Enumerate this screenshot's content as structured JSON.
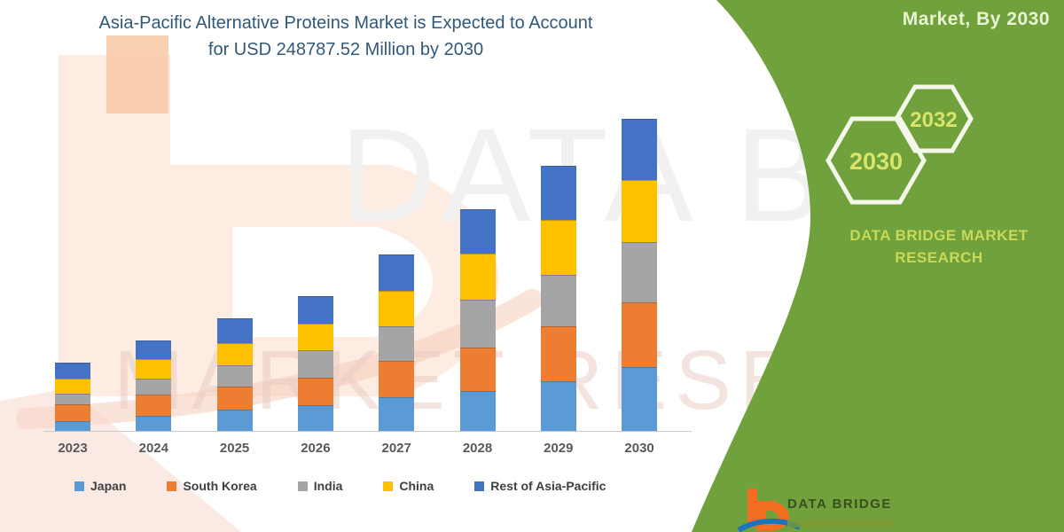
{
  "title": {
    "line1": "Asia-Pacific Alternative Proteins Market is Expected to Account",
    "line2": "for USD 248787.52 Million by 2030"
  },
  "watermark": {
    "line1": "DATA BRIDGE",
    "line2": "MARKET RESEARCH"
  },
  "sidebar": {
    "top_caption": "Market, By 2030",
    "hexagons": [
      {
        "label": "2030"
      },
      {
        "label": "2032"
      }
    ],
    "brand_line1": "DATA BRIDGE MARKET",
    "brand_line2": "RESEARCH",
    "accent_green": "#71a13c",
    "hexagon_text_color": "#d9e46a"
  },
  "footer_logo": {
    "text": "DATA BRIDGE",
    "mark_color": "#f26f21"
  },
  "chart_data": {
    "type": "bar",
    "stacked": true,
    "title": "Asia-Pacific Alternative Proteins Market is Expected to Account for USD 248787.52 Million by 2030",
    "unit": "USD Million",
    "categories": [
      "2023",
      "2024",
      "2025",
      "2026",
      "2027",
      "2028",
      "2029",
      "2030"
    ],
    "series": [
      {
        "name": "Japan",
        "color": "#5B9BD5",
        "values": [
          7800,
          12000,
          17000,
          20500,
          26900,
          31800,
          39600,
          50900
        ]
      },
      {
        "name": "South Korea",
        "color": "#ED7D31",
        "values": [
          13400,
          17000,
          18400,
          21900,
          29000,
          34600,
          43800,
          51600
        ]
      },
      {
        "name": "India",
        "color": "#A5A5A5",
        "values": [
          8500,
          12700,
          17000,
          21900,
          27600,
          38200,
          41000,
          48100
        ]
      },
      {
        "name": "China",
        "color": "#FFC000",
        "values": [
          12000,
          15500,
          17700,
          21200,
          28300,
          36800,
          43800,
          49500
        ]
      },
      {
        "name": "Rest of Asia-Pacific",
        "color": "#4472C4",
        "values": [
          12700,
          14800,
          19800,
          21900,
          29000,
          35300,
          43100,
          48687.52
        ]
      }
    ],
    "totals_by_year": [
      54400,
      72000,
      89900,
      107400,
      140800,
      176700,
      211300,
      248787.52
    ],
    "highlight_total_2030": 248787.52,
    "legend_position": "bottom",
    "gridlines": false,
    "value_axis_visible": false
  }
}
